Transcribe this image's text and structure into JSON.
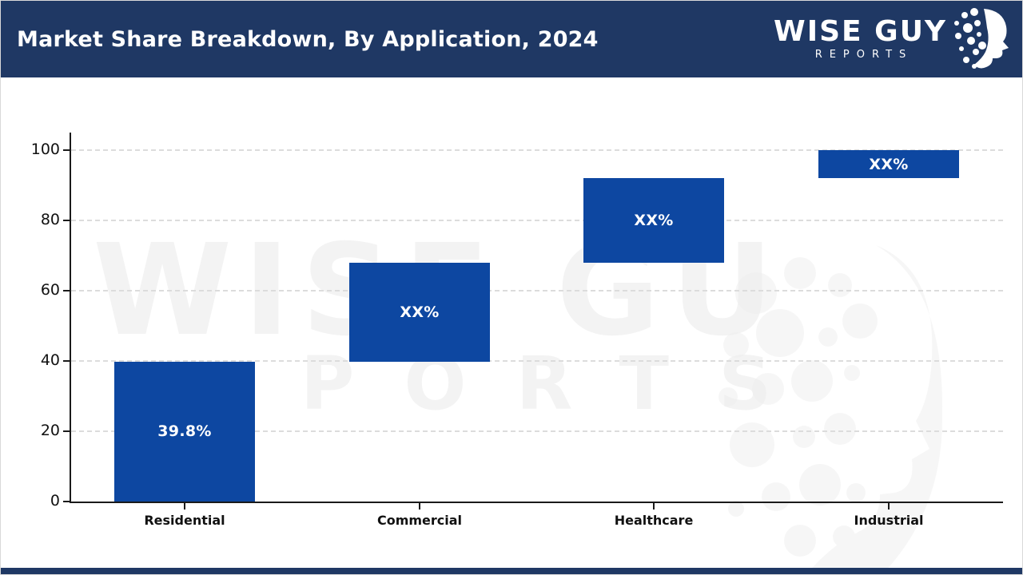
{
  "header": {
    "title": "Market Share Breakdown, By Application, 2024",
    "bg_color": "#1f3864",
    "logo": {
      "line1": "WISE GUY",
      "line2": "REPORTS"
    }
  },
  "watermark": {
    "line1": "WISE GU",
    "line2": "PORTS"
  },
  "footer": {
    "bg_color": "#1f3864"
  },
  "chart_data": {
    "type": "bar",
    "subtype": "waterfall",
    "title": "Market Share Breakdown, By Application, 2024",
    "categories": [
      "Residential",
      "Commercial",
      "Healthcare",
      "Industrial"
    ],
    "segments": [
      {
        "category": "Residential",
        "start": 0,
        "end": 39.8,
        "label": "39.8%"
      },
      {
        "category": "Commercial",
        "start": 39.8,
        "end": 68,
        "label": "XX%"
      },
      {
        "category": "Healthcare",
        "start": 68,
        "end": 92,
        "label": "XX%"
      },
      {
        "category": "Industrial",
        "start": 92,
        "end": 100,
        "label": "XX%"
      }
    ],
    "xlabel": "",
    "ylabel": "",
    "yticks": [
      0,
      20,
      40,
      60,
      80,
      100
    ],
    "ylim": [
      0,
      105
    ],
    "grid": "dashed-horizontal",
    "legend": "none",
    "bar_color": "#0d47a1",
    "bar_label_color": "#ffffff",
    "grid_color": "#dcdcdc"
  }
}
